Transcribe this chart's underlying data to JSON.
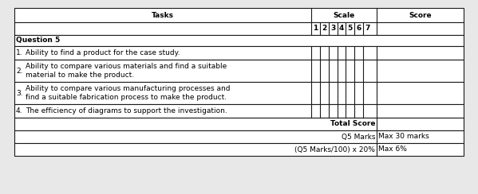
{
  "title": "Tasks",
  "scale_header": "Scale",
  "score_header": "Score",
  "question_label": "Question 5",
  "rows": [
    {
      "num": "1.",
      "text": "Ability to find a product for the case study."
    },
    {
      "num": "2.",
      "text": "Ability to compare various materials and find a suitable\nmaterial to make the product."
    },
    {
      "num": "3.",
      "text": "Ability to compare various manufacturing processes and\nfind a suitable fabrication process to make the product."
    },
    {
      "num": "4.",
      "text": "The efficiency of diagrams to support the investigation."
    }
  ],
  "total_score_label": "Total Score",
  "q5_marks_label": "Q5 Marks",
  "q5_marks_right": "Max 30 marks",
  "q5_formula_label": "(Q5 Marks/100) x 20%",
  "q5_formula_right": "Max 6%",
  "bg_color": "#e8e8e8",
  "table_bg": "#ffffff",
  "border_color": "#1a1a1a",
  "font_size": 6.5,
  "fig_width": 5.99,
  "fig_height": 2.44
}
